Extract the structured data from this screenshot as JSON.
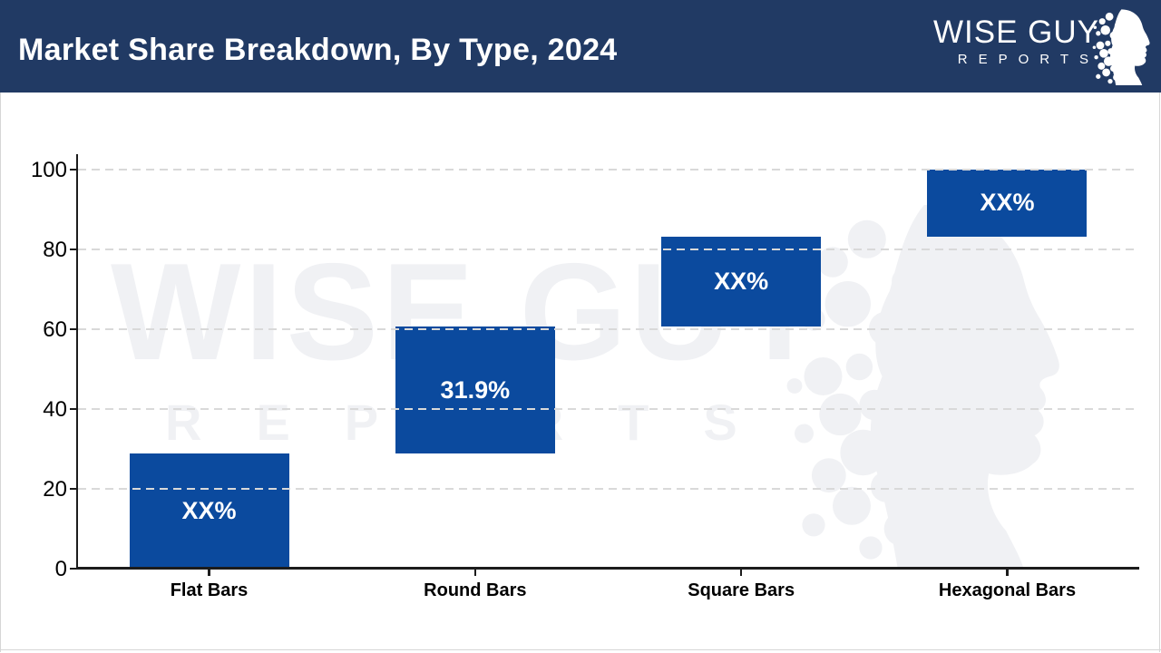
{
  "header": {
    "title": "Market Share Breakdown, By Type, 2024",
    "bg_color": "#213a64",
    "logo": {
      "wordmark": "WISE GUY",
      "subtext": "REPORTS"
    }
  },
  "watermark": {
    "line1": "WISE GUY",
    "line2": "REPORTS"
  },
  "chart_data": {
    "type": "bar",
    "subtype": "waterfall",
    "title": "Market Share Breakdown, By Type, 2024",
    "categories": [
      "Flat Bars",
      "Round Bars",
      "Square Bars",
      "Hexagonal Bars"
    ],
    "segments": [
      {
        "category": "Flat Bars",
        "start": 0,
        "end": 28.7,
        "value": 28.7,
        "value_label": "XX%"
      },
      {
        "category": "Round Bars",
        "start": 28.7,
        "end": 60.6,
        "value": 31.9,
        "value_label": "31.9%"
      },
      {
        "category": "Square Bars",
        "start": 60.6,
        "end": 83.1,
        "value": 22.5,
        "value_label": "XX%"
      },
      {
        "category": "Hexagonal Bars",
        "start": 83.1,
        "end": 100,
        "value": 16.9,
        "value_label": "XX%"
      }
    ],
    "y_ticks": [
      "0",
      "20",
      "40",
      "60",
      "80",
      "100"
    ],
    "ylim": [
      0,
      104
    ],
    "xlabel": "",
    "ylabel": "",
    "legend": "none",
    "grid": "horizontal-dashed",
    "bar_color": "#0b4a9e",
    "bar_label_color": "#ffffff",
    "axis_color": "#1c1c1c",
    "gridline_color": "#d9d9d9",
    "watermark_color": "#f0f1f4"
  }
}
